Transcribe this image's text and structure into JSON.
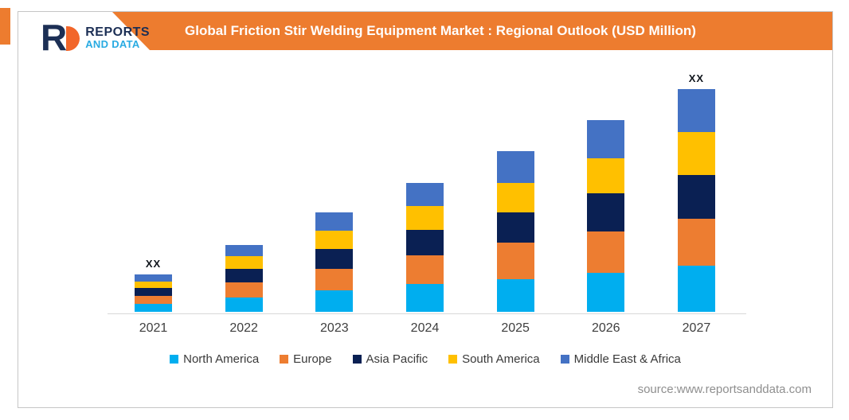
{
  "page": {
    "corner_accent_color": "#ED7C2F"
  },
  "logo": {
    "mark_letter": "R",
    "line1": "REPORTS",
    "line2": "AND DATA",
    "navy": "#1C2F55",
    "cyan": "#29ABE2",
    "orange": "#F2662A"
  },
  "banner": {
    "title": "Global Friction Stir Welding Equipment Market : Regional Outlook (USD Million)",
    "bg_color": "#ED7C2F",
    "text_color": "#FFFFFF"
  },
  "chart_data": {
    "type": "bar",
    "stacked": true,
    "title": "Global Friction Stir Welding Equipment Market : Regional Outlook (USD Million)",
    "categories": [
      "2021",
      "2022",
      "2023",
      "2024",
      "2025",
      "2026",
      "2027"
    ],
    "series": [
      {
        "name": "North America",
        "color": "#00AEEF",
        "values": [
          10,
          18,
          27,
          35,
          41,
          49,
          58
        ]
      },
      {
        "name": "Europe",
        "color": "#ED7D31",
        "values": [
          10,
          19,
          27,
          36,
          46,
          52,
          59
        ]
      },
      {
        "name": "Asia Pacific",
        "color": "#0A2053",
        "values": [
          10,
          17,
          25,
          32,
          38,
          48,
          55
        ]
      },
      {
        "name": "South America",
        "color": "#FFC000",
        "values": [
          8,
          16,
          23,
          30,
          37,
          44,
          54
        ]
      },
      {
        "name": "Middle East & Africa",
        "color": "#4472C4",
        "values": [
          9,
          14,
          23,
          29,
          40,
          48,
          54
        ]
      }
    ],
    "bar_top_labels": [
      "XX",
      "",
      "",
      "",
      "",
      "",
      "XX"
    ],
    "value_note": "actual values masked as XX in source image; series values are relative stack heights",
    "xlabel": "",
    "ylabel": "",
    "grid": false,
    "legend_position": "bottom",
    "axis_text_color": "#3F3F3F"
  },
  "footer": {
    "source": "source:www.reportsanddata.com"
  }
}
